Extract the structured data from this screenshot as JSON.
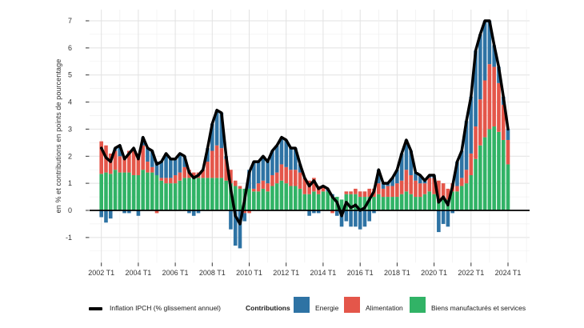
{
  "figure": {
    "y_axis_title": "en % et contributions en points de pourcentage"
  },
  "legend": {
    "line_label": "Inflation IPCH (% glissement annuel)",
    "contributions_label": "Contributions",
    "items": [
      {
        "label": "Energie",
        "color": "#2e73a4"
      },
      {
        "label": "Alimentation",
        "color": "#e4564a"
      },
      {
        "label": "Biens manufacturés et services",
        "color": "#31b366"
      }
    ]
  },
  "chart_data": {
    "type": "bar",
    "subtype": "stacked-bar-with-line",
    "title": "",
    "xlabel": "",
    "ylabel": "en % et contributions en points de pourcentage",
    "ylim": [
      -1.9,
      7.4
    ],
    "grid": true,
    "legend_position": "bottom",
    "y_ticks": [
      7,
      6,
      5,
      4,
      3,
      2,
      1,
      0,
      -1
    ],
    "x_tick_labels": [
      "2002 T1",
      "2004 T1",
      "2006 T1",
      "2008 T1",
      "2010 T1",
      "2012 T1",
      "2014 T1",
      "2016 T1",
      "2018 T1",
      "2020 T1",
      "2022 T1",
      "2024 T1"
    ],
    "categories": [
      "2002 T1",
      "2002 T2",
      "2002 T3",
      "2002 T4",
      "2003 T1",
      "2003 T2",
      "2003 T3",
      "2003 T4",
      "2004 T1",
      "2004 T2",
      "2004 T3",
      "2004 T4",
      "2005 T1",
      "2005 T2",
      "2005 T3",
      "2005 T4",
      "2006 T1",
      "2006 T2",
      "2006 T3",
      "2006 T4",
      "2007 T1",
      "2007 T2",
      "2007 T3",
      "2007 T4",
      "2008 T1",
      "2008 T2",
      "2008 T3",
      "2008 T4",
      "2009 T1",
      "2009 T2",
      "2009 T3",
      "2009 T4",
      "2010 T1",
      "2010 T2",
      "2010 T3",
      "2010 T4",
      "2011 T1",
      "2011 T2",
      "2011 T3",
      "2011 T4",
      "2012 T1",
      "2012 T2",
      "2012 T3",
      "2012 T4",
      "2013 T1",
      "2013 T2",
      "2013 T3",
      "2013 T4",
      "2014 T1",
      "2014 T2",
      "2014 T3",
      "2014 T4",
      "2015 T1",
      "2015 T2",
      "2015 T3",
      "2015 T4",
      "2016 T1",
      "2016 T2",
      "2016 T3",
      "2016 T4",
      "2017 T1",
      "2017 T2",
      "2017 T3",
      "2017 T4",
      "2018 T1",
      "2018 T2",
      "2018 T3",
      "2018 T4",
      "2019 T1",
      "2019 T2",
      "2019 T3",
      "2019 T4",
      "2020 T1",
      "2020 T2",
      "2020 T3",
      "2020 T4",
      "2021 T1",
      "2021 T2",
      "2021 T3",
      "2021 T4",
      "2022 T1",
      "2022 T2",
      "2022 T3",
      "2022 T4",
      "2023 T1",
      "2023 T2",
      "2023 T3",
      "2023 T4",
      "2024 T1"
    ],
    "series": [
      {
        "name": "Energie",
        "color": "#2e73a4",
        "values": [
          -0.25,
          -0.45,
          -0.3,
          0.1,
          0.4,
          -0.1,
          -0.1,
          0.1,
          -0.2,
          0.3,
          0.5,
          0.6,
          0.5,
          0.6,
          0.9,
          0.7,
          0.6,
          0.7,
          0.4,
          -0.1,
          -0.2,
          -0.1,
          0,
          0.5,
          1,
          1.3,
          1.3,
          0.1,
          -0.7,
          -1.3,
          -1.4,
          -0.3,
          0.7,
          1,
          0.8,
          0.9,
          0.8,
          0.9,
          1,
          1,
          1,
          0.8,
          0.8,
          0.3,
          0,
          -0.2,
          -0.1,
          -0.1,
          0,
          0.1,
          0.1,
          -0.2,
          -0.6,
          -0.4,
          -0.6,
          -0.6,
          -0.7,
          -0.6,
          -0.4,
          -0.1,
          0.5,
          0.2,
          0.1,
          0.3,
          0.5,
          1,
          1.1,
          0.9,
          0.3,
          0.3,
          0.1,
          0.1,
          0.1,
          -0.8,
          -0.5,
          -0.6,
          -0.1,
          0.9,
          1,
          1.8,
          2.1,
          2.8,
          2.4,
          2.2,
          1.6,
          0.8,
          0.6,
          0.3,
          0.4
        ]
      },
      {
        "name": "Alimentation",
        "color": "#e4564a",
        "values": [
          1.2,
          1,
          0.75,
          0.7,
          0.6,
          0.6,
          0.8,
          0.9,
          0.8,
          0.9,
          0.4,
          0.2,
          -0.1,
          0.1,
          0.2,
          0.2,
          0.3,
          0.3,
          0.4,
          0.3,
          0.2,
          0.2,
          0.3,
          0.6,
          1,
          1.2,
          1.1,
          0.8,
          0.5,
          0.2,
          0.1,
          -0.1,
          -0.1,
          0.1,
          0.3,
          0.3,
          0.3,
          0.4,
          0.4,
          0.6,
          0.6,
          0.6,
          0.6,
          0.6,
          0.6,
          0.5,
          0.5,
          0.3,
          0.2,
          0,
          -0.1,
          0,
          0,
          0.1,
          0.1,
          0.2,
          0.2,
          0.2,
          0.3,
          0.3,
          0.4,
          0.3,
          0.4,
          0.4,
          0.5,
          0.5,
          0.8,
          0.7,
          0.6,
          0.5,
          0.4,
          0.5,
          0.6,
          0.8,
          0.5,
          0.4,
          0.3,
          0.2,
          0.3,
          0.5,
          0.8,
          1.2,
          1.7,
          2.1,
          2.4,
          2.2,
          1.8,
          1.3,
          0.9
        ]
      },
      {
        "name": "Biens manufacturés et services",
        "color": "#31b366",
        "values": [
          1.35,
          1.4,
          1.35,
          1.5,
          1.4,
          1.4,
          1.4,
          1.3,
          1.3,
          1.5,
          1.4,
          1.4,
          1.3,
          1.1,
          1,
          1,
          1,
          1.1,
          1.2,
          1.2,
          1.2,
          1.2,
          1.2,
          1.2,
          1.2,
          1.2,
          1.2,
          1.1,
          1,
          0.9,
          0.8,
          0.8,
          0.8,
          0.7,
          0.7,
          0.8,
          0.7,
          0.9,
          1,
          1.1,
          1,
          0.9,
          0.9,
          0.8,
          0.6,
          0.6,
          0.7,
          0.6,
          0.7,
          0.7,
          0.5,
          0.5,
          0.4,
          0.6,
          0.6,
          0.6,
          0.5,
          0.5,
          0.5,
          0.5,
          0.6,
          0.5,
          0.5,
          0.5,
          0.5,
          0.6,
          0.7,
          0.6,
          0.5,
          0.5,
          0.6,
          0.7,
          0.6,
          0.3,
          0.5,
          0.4,
          0.7,
          0.7,
          0.9,
          1,
          1.3,
          1.9,
          2.4,
          2.7,
          3,
          3.1,
          2.9,
          2.6,
          1.7
        ]
      }
    ],
    "line_series": {
      "name": "Inflation IPCH (% glissement annuel)",
      "color": "#000000",
      "values": [
        2.3,
        1.95,
        1.8,
        2.3,
        2.4,
        1.9,
        2.1,
        2.3,
        1.9,
        2.7,
        2.3,
        2.2,
        1.7,
        1.8,
        2.1,
        1.9,
        1.9,
        2.1,
        2,
        1.4,
        1.2,
        1.3,
        1.5,
        2.3,
        3.2,
        3.7,
        3.6,
        2,
        0.8,
        -0.2,
        -0.5,
        0.4,
        1.4,
        1.8,
        1.8,
        2,
        1.8,
        2.2,
        2.4,
        2.7,
        2.6,
        2.3,
        2.3,
        1.7,
        1.2,
        0.9,
        1.1,
        0.8,
        0.9,
        0.8,
        0.5,
        0.3,
        -0.2,
        0.3,
        0.1,
        0.2,
        0,
        0.1,
        0.4,
        0.7,
        1.5,
        1,
        1,
        1.2,
        1.5,
        2.1,
        2.6,
        2.2,
        1.4,
        1.3,
        1.1,
        1.3,
        1.3,
        0.3,
        0.5,
        0.2,
        0.9,
        1.8,
        2.2,
        3.3,
        4.2,
        5.9,
        6.5,
        7,
        7,
        6.1,
        5.3,
        4.2,
        3
      ]
    }
  }
}
